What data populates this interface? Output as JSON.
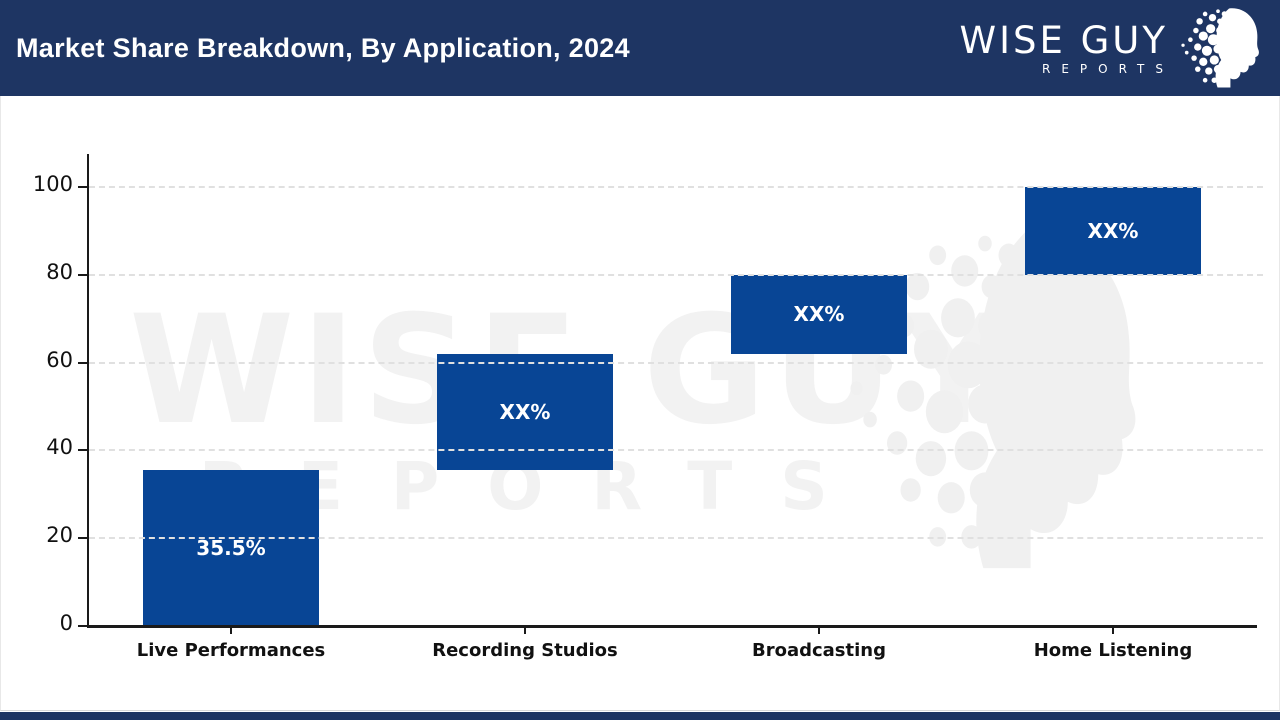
{
  "header": {
    "title": "Market Share Breakdown, By Application, 2024",
    "logo": {
      "name": "WISE GUY",
      "sub": "REPORTS"
    }
  },
  "watermark": {
    "line1": "WISE GUY",
    "line2": "REPORTS"
  },
  "chart_data": {
    "type": "bar",
    "subtype": "waterfall",
    "title": "Market Share Breakdown, By Application, 2024",
    "categories": [
      "Live Performances",
      "Recording Studios",
      "Broadcasting",
      "Home Listening"
    ],
    "segments": [
      {
        "category": "Live Performances",
        "start": 0,
        "end": 35.5,
        "label": "35.5%"
      },
      {
        "category": "Recording Studios",
        "start": 35.5,
        "end": 62,
        "label": "XX%"
      },
      {
        "category": "Broadcasting",
        "start": 62,
        "end": 80,
        "label": "XX%"
      },
      {
        "category": "Home Listening",
        "start": 80,
        "end": 100,
        "label": "XX%"
      }
    ],
    "yticks": [
      0,
      20,
      40,
      60,
      80,
      100
    ],
    "ylim": [
      0,
      100
    ],
    "xlabel": "",
    "ylabel": "",
    "grid": "horizontal-dashed",
    "legend": null,
    "bar_color": "#084595"
  },
  "colors": {
    "header_bg": "#1e3563",
    "footer_bg": "#1e3563",
    "bar": "#084595",
    "gridline": "#e0e0e0",
    "axis": "#1a1a1a",
    "watermark": "#f2f2f2"
  }
}
